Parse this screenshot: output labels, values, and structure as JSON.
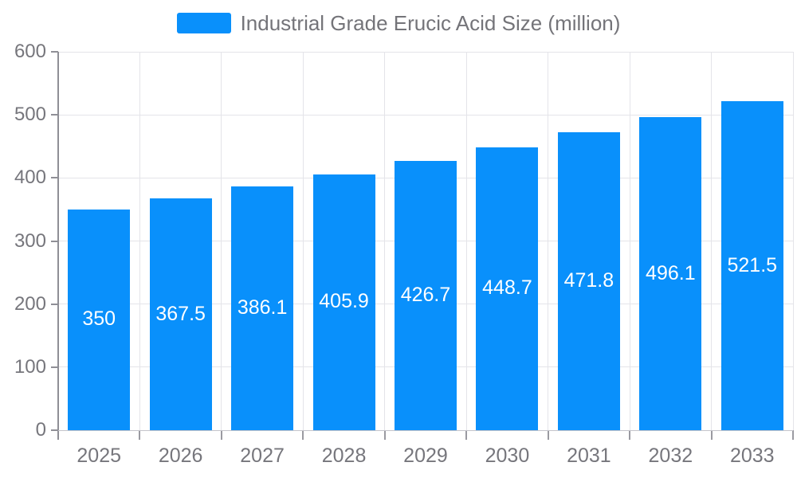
{
  "legend": {
    "label": "Industrial Grade Erucic Acid Size (million)"
  },
  "chart_data": {
    "type": "bar",
    "title": "Industrial Grade Erucic Acid Size (million)",
    "series_name": "Industrial Grade Erucic Acid Size (million)",
    "categories": [
      "2025",
      "2026",
      "2027",
      "2028",
      "2029",
      "2030",
      "2031",
      "2032",
      "2033"
    ],
    "values": [
      350,
      367.5,
      386.1,
      405.9,
      426.7,
      448.7,
      471.8,
      496.1,
      521.5
    ],
    "value_labels": [
      "350",
      "367.5",
      "386.1",
      "405.9",
      "426.7",
      "448.7",
      "471.8",
      "496.1",
      "521.5"
    ],
    "xlabel": "",
    "ylabel": "",
    "ylim": [
      0,
      600
    ],
    "y_ticks": [
      0,
      100,
      200,
      300,
      400,
      500,
      600
    ],
    "grid": true,
    "legend_position": "top",
    "bar_label_position": "inside-center"
  },
  "colors": {
    "bar": "#0990fb",
    "bar_label": "#ffffff",
    "axis_text": "#76767c",
    "legend_text": "#747479",
    "grid_line": "#e4e4e9",
    "y_axis_line": "#8f8f96",
    "x_axis_line": "#c4c4cb",
    "background": "#ffffff"
  }
}
